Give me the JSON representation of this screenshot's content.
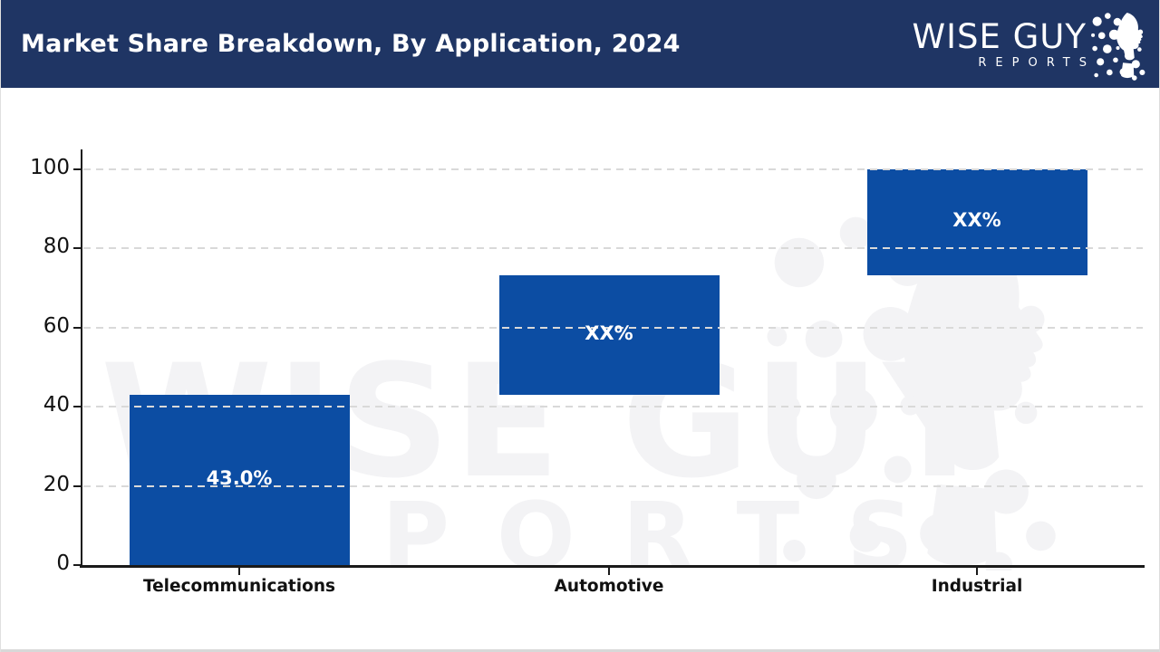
{
  "header": {
    "title": "Market Share Breakdown, By Application, 2024",
    "brand": {
      "line1": "WISE GUY",
      "line2": "REPORTS",
      "icon": "dotted-face-profile"
    }
  },
  "watermark": {
    "line1": "WISE GUY",
    "line2": "REPORTS",
    "icon": "dotted-face-profile"
  },
  "chart_data": {
    "type": "bar",
    "subtype": "floating-segment-stack",
    "title": "Market Share Breakdown, By Application, 2024",
    "categories": [
      "Telecommunications",
      "Automotive",
      "Industrial"
    ],
    "segments": [
      {
        "category": "Telecommunications",
        "from": 0,
        "to": 43,
        "label": "43.0%"
      },
      {
        "category": "Automotive",
        "from": 43,
        "to": 73.3,
        "label": "XX%"
      },
      {
        "category": "Industrial",
        "from": 73.3,
        "to": 100,
        "label": "XX%"
      }
    ],
    "ylim": [
      0,
      100
    ],
    "yticks": [
      0,
      20,
      40,
      60,
      80,
      100
    ],
    "xlabel": "",
    "ylabel": "",
    "grid": {
      "axis": "y",
      "style": "dashed",
      "color": "#d9d9d9"
    },
    "legend": null,
    "bar_color": "#0c4da3",
    "bar_label_color": "#ffffff"
  },
  "colors": {
    "header_bg": "#1f3564",
    "bar": "#0c4da3",
    "grid": "#d9d9d9",
    "axis": "#1a1a1a",
    "watermark": "#f3f3f5",
    "bottom_strip": "#d8d8d8"
  }
}
